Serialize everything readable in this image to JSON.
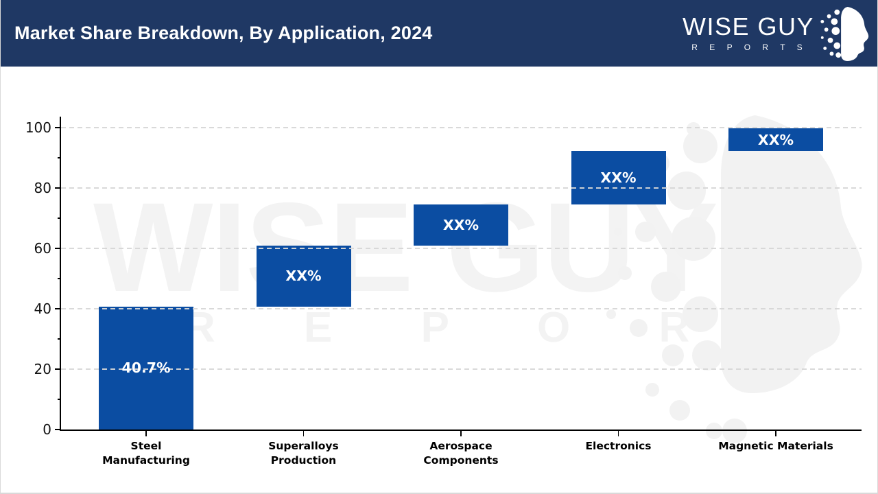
{
  "header": {
    "title": "Market Share Breakdown, By Application, 2024",
    "bg_color": "#1f3864",
    "logo_line1": "WISE GUY",
    "logo_line2": "R E P O R T S"
  },
  "watermark": {
    "line1": "WISE GUY",
    "line2": "R E P O R T S"
  },
  "chart_data": {
    "type": "bar",
    "variant": "waterfall",
    "title": "Market Share Breakdown, By Application, 2024",
    "categories": [
      "Steel Manufacturing",
      "Superalloys Production",
      "Aerospace Components",
      "Electronics",
      "Magnetic Materials"
    ],
    "category_lines": [
      [
        "Steel",
        "Manufacturing"
      ],
      [
        "Superalloys",
        "Production"
      ],
      [
        "Aerospace",
        "Components"
      ],
      [
        "Electronics"
      ],
      [
        "Magnetic Materials"
      ]
    ],
    "segments": [
      {
        "category": "Steel Manufacturing",
        "start": 0,
        "end": 40.7,
        "label": "40.7%"
      },
      {
        "category": "Superalloys Production",
        "start": 40.7,
        "end": 61.0,
        "label": "XX%"
      },
      {
        "category": "Aerospace Components",
        "start": 61.0,
        "end": 74.5,
        "label": "XX%"
      },
      {
        "category": "Electronics",
        "start": 74.5,
        "end": 92.3,
        "label": "XX%"
      },
      {
        "category": "Magnetic Materials",
        "start": 92.3,
        "end": 99.7,
        "label": "XX%"
      }
    ],
    "xlabel": "",
    "ylabel": "",
    "ylim": [
      0,
      104
    ],
    "y_ticks": [
      0,
      20,
      40,
      60,
      80,
      100
    ],
    "y_minor_ticks": [
      10,
      30,
      50,
      70,
      90
    ],
    "grid": {
      "axis": "y",
      "style": "dashed",
      "color": "#d9d9d9",
      "on_top": true
    },
    "legend": "none",
    "colors": {
      "bar": "#0b4da2",
      "bar_label": "#ffffff",
      "axis": "#000000",
      "tick_label": "#111111"
    }
  }
}
